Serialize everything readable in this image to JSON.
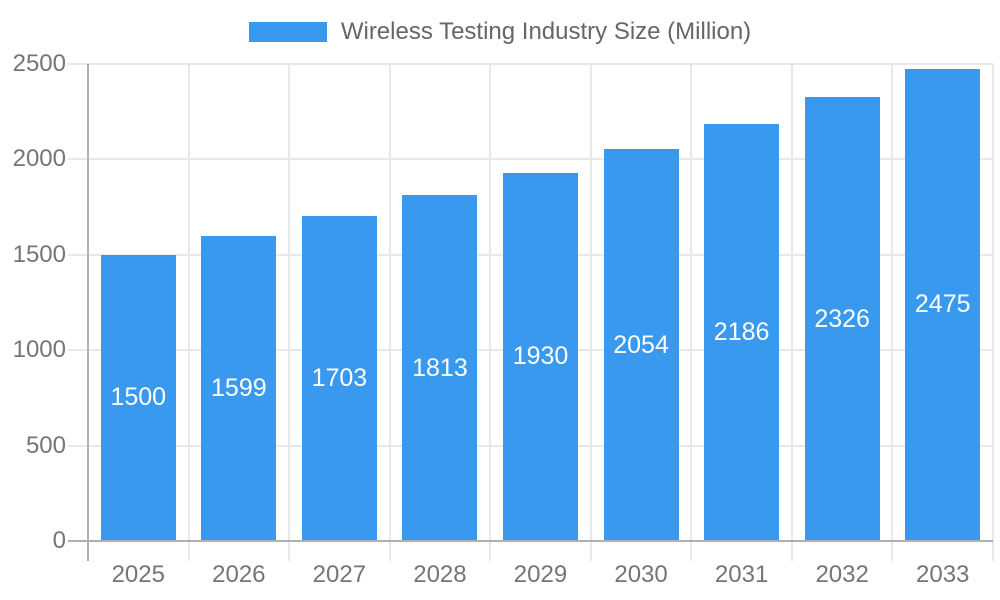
{
  "chart_data": {
    "type": "bar",
    "title": "Wireless Testing Industry Size (Million)",
    "categories": [
      "2025",
      "2026",
      "2027",
      "2028",
      "2029",
      "2030",
      "2031",
      "2032",
      "2033"
    ],
    "series": [
      {
        "name": "Wireless Testing Industry Size (Million)",
        "values": [
          1500,
          1599,
          1703,
          1813,
          1930,
          2054,
          2186,
          2326,
          2475
        ]
      }
    ],
    "xlabel": "",
    "ylabel": "",
    "ylim": [
      0,
      2500
    ],
    "yticks": [
      0,
      500,
      1000,
      1500,
      2000,
      2500
    ],
    "grid": true,
    "legend_position": "top",
    "value_label_position": "inside-center",
    "colors": {
      "bar": "#3899ee",
      "bar_value_text": "#ffffff",
      "axis_tick_text": "#757575",
      "legend_text": "#666666",
      "gridline": "#e8e8e8",
      "axis_line": "#b0b0b0",
      "background": "#ffffff"
    }
  }
}
